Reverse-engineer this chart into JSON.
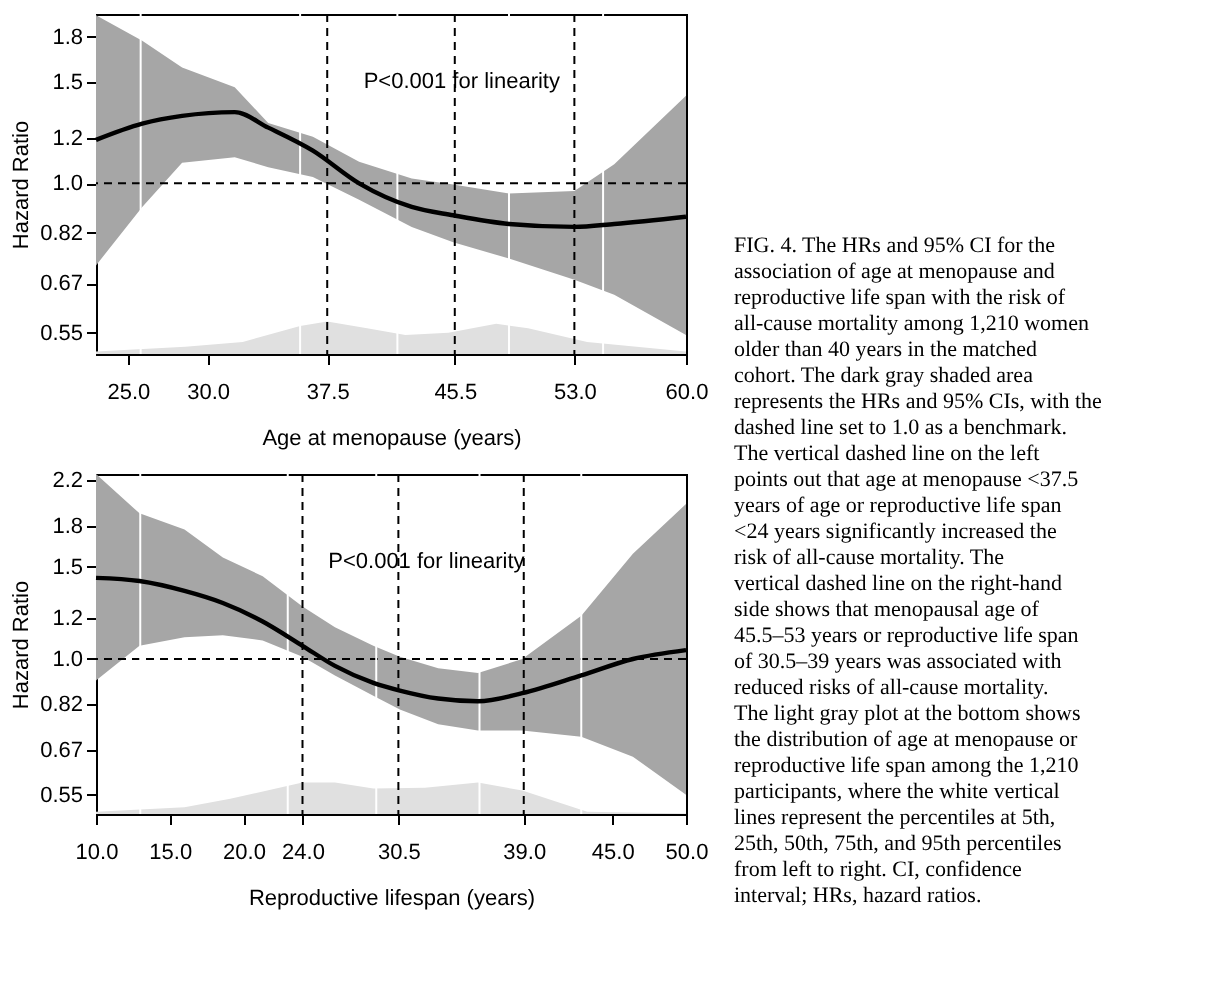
{
  "chart_data": [
    {
      "type": "line",
      "xlabel": "Age at menopause (years)",
      "ylabel": "Hazard Ratio",
      "log": "y",
      "grid": false,
      "xlim": [
        23,
        60
      ],
      "ylim": [
        0.505,
        1.97
      ],
      "xticks": [
        {
          "value": 25,
          "label": "25.0"
        },
        {
          "value": 30,
          "label": "30.0"
        },
        37.5,
        45.5,
        {
          "value": 53,
          "label": "53.0"
        },
        {
          "value": 60,
          "label": "60.0"
        }
      ],
      "yticks": [
        0.55,
        0.67,
        0.82,
        {
          "value": 1,
          "label": "1.0"
        },
        1.2,
        1.5,
        1.8
      ],
      "annotations": [
        "P<0.001 for linearity"
      ],
      "ref_lines": [
        {
          "axis": "y",
          "value": 1.0,
          "color": "#000000",
          "line_style": "dashed"
        },
        {
          "axis": "x",
          "value": 37.5,
          "color": "#000000",
          "line_style": "dashed"
        },
        {
          "axis": "x",
          "value": 45.5,
          "color": "#000000",
          "line_style": "dashed"
        },
        {
          "axis": "x",
          "value": 53,
          "color": "#000000",
          "line_style": "dashed"
        },
        {
          "axis": "x",
          "value": 25.8,
          "color": "#ffffff",
          "line_style": "solid"
        },
        {
          "axis": "x",
          "value": 35.8,
          "color": "#ffffff",
          "line_style": "solid"
        },
        {
          "axis": "x",
          "value": 41.9,
          "color": "#ffffff",
          "line_style": "solid"
        },
        {
          "axis": "x",
          "value": 48.9,
          "color": "#ffffff",
          "line_style": "solid"
        },
        {
          "axis": "x",
          "value": 54.8,
          "color": "#ffffff",
          "line_style": "solid"
        }
      ],
      "series": [
        {
          "type": "area",
          "color": "#e0e0e0",
          "x": [
            23,
            28.6,
            32.2,
            35.8,
            37.5,
            40,
            42.4,
            45.1,
            48.1,
            50.1,
            53.8,
            60
          ],
          "values": [
            0.51,
            0.52,
            0.53,
            0.565,
            0.575,
            0.56,
            0.545,
            0.55,
            0.57,
            0.56,
            0.53,
            0.51
          ]
        },
        {
          "type": "line",
          "color": "#000000",
          "line_style": "solid",
          "marker": "none",
          "x": [
            23,
            25.9,
            28.4,
            31.7,
            33.8,
            36.6,
            39.5,
            42.8,
            45.4,
            48.9,
            53.0,
            55.5,
            60
          ],
          "values": [
            1.19,
            1.27,
            1.31,
            1.33,
            1.25,
            1.14,
            1.0,
            0.91,
            0.88,
            0.85,
            0.84,
            0.85,
            0.875
          ],
          "lower": [
            0.72,
            0.91,
            1.086,
            1.11,
            1.067,
            1.026,
            0.9365,
            0.84,
            0.79,
            0.74,
            0.68,
            0.64,
            0.545
          ],
          "upper": [
            1.96,
            1.77,
            1.59,
            1.47,
            1.273,
            1.205,
            1.09,
            1.02,
            0.995,
            0.96,
            0.97,
            1.08,
            1.42
          ]
        }
      ]
    },
    {
      "type": "line",
      "xlabel": "Reproductive lifespan (years)",
      "ylabel": "Hazard Ratio",
      "log": "y",
      "grid": false,
      "xlim": [
        10,
        50
      ],
      "ylim": [
        0.505,
        2.26
      ],
      "xticks": [
        {
          "value": 10,
          "label": "10.0"
        },
        {
          "value": 15,
          "label": "15.0"
        },
        {
          "value": 20,
          "label": "20.0"
        },
        {
          "value": 24,
          "label": "24.0"
        },
        30.5,
        {
          "value": 39,
          "label": "39.0"
        },
        {
          "value": 45,
          "label": "45.0"
        },
        {
          "value": 50,
          "label": "50.0"
        }
      ],
      "yticks": [
        0.55,
        0.67,
        0.82,
        {
          "value": 1,
          "label": "1.0"
        },
        1.2,
        1.5,
        1.8,
        2.2
      ],
      "annotations": [
        "P<0.001 for linearity"
      ],
      "ref_lines": [
        {
          "axis": "y",
          "value": 1.0,
          "color": "#000000",
          "line_style": "dashed"
        },
        {
          "axis": "x",
          "value": 24,
          "color": "#000000",
          "line_style": "dashed"
        },
        {
          "axis": "x",
          "value": 30.5,
          "color": "#000000",
          "line_style": "dashed"
        },
        {
          "axis": "x",
          "value": 39,
          "color": "#000000",
          "line_style": "dashed"
        },
        {
          "axis": "x",
          "value": 13.0,
          "color": "#ffffff",
          "line_style": "solid"
        },
        {
          "axis": "x",
          "value": 23.0,
          "color": "#ffffff",
          "line_style": "solid"
        },
        {
          "axis": "x",
          "value": 29.0,
          "color": "#ffffff",
          "line_style": "solid"
        },
        {
          "axis": "x",
          "value": 36.0,
          "color": "#ffffff",
          "line_style": "solid"
        },
        {
          "axis": "x",
          "value": 42.9,
          "color": "#ffffff",
          "line_style": "solid"
        }
      ],
      "series": [
        {
          "type": "area",
          "color": "#e0e0e0",
          "x": [
            10,
            16,
            19.1,
            24,
            26.2,
            28.8,
            32.3,
            35.9,
            38.9,
            43.3,
            50
          ],
          "values": [
            0.51,
            0.52,
            0.54,
            0.58,
            0.58,
            0.565,
            0.567,
            0.58,
            0.56,
            0.51,
            0.506
          ]
        },
        {
          "type": "line",
          "color": "#000000",
          "line_style": "solid",
          "marker": "none",
          "x": [
            10,
            12.95,
            16,
            18.6,
            21.3,
            24,
            26.2,
            28.8,
            30.6,
            33.2,
            35.9,
            38.9,
            42.9,
            46.4,
            50
          ],
          "values": [
            1.43,
            1.41,
            1.35,
            1.28,
            1.18,
            1.06,
            0.97,
            0.9,
            0.87,
            0.84,
            0.83,
            0.86,
            0.93,
            1.0,
            1.04
          ],
          "lower": [
            0.91,
            1.06,
            1.1,
            1.11,
            1.085,
            1.01,
            0.93,
            0.85,
            0.8,
            0.75,
            0.73,
            0.73,
            0.71,
            0.65,
            0.55
          ],
          "upper": [
            2.26,
            1.9,
            1.77,
            1.564,
            1.44,
            1.26,
            1.15,
            1.06,
            1.01,
            0.96,
            0.94,
            1.0,
            1.21,
            1.59,
            1.98
          ]
        }
      ]
    },
    {
      "type": "other",
      "annotations": [
        "FIG. 4.    The HRs and 95% CI for the association of age at menopause and reproductive life span with the risk of all-cause mortality among 1,210 women older than 40 years in the matched cohort. The dark gray shaded area represents the HRs and 95% CIs, with the dashed line set to 1.0 as a benchmark. The vertical dashed line on the left points out that age at menopause <37.5 years of age or reproductive life span <24 years significantly increased the risk of all-cause mortality. The vertical dashed line on the right-hand side shows that menopausal age of 45.5–53 years or reproductive life span of 30.5–39 years was associated with reduced risks of all-cause mortality. The light gray plot at the bottom shows the distribution of age at menopause or reproductive life span among the 1,210 participants, where the white vertical lines represent the percentiles at 5th, 25th, 50th, 75th, and 95th percentiles from left to right. CI, confidence interval; HRs, hazard ratios."
      ]
    }
  ]
}
